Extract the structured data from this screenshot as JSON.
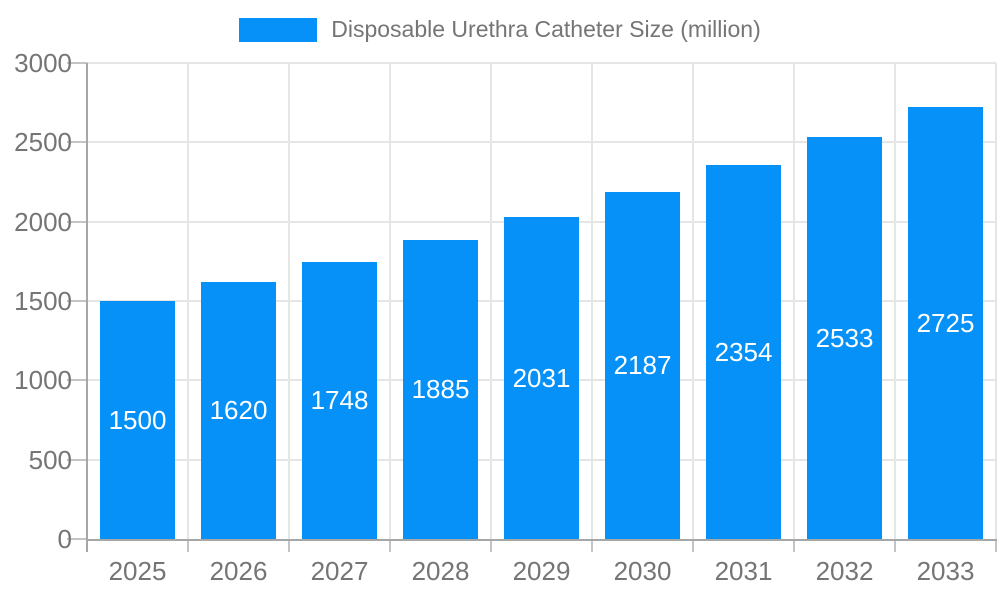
{
  "chart_data": {
    "type": "bar",
    "title": "Disposable Urethra Catheter Size (million)",
    "legend_position": "top",
    "categories": [
      "2025",
      "2026",
      "2027",
      "2028",
      "2029",
      "2030",
      "2031",
      "2032",
      "2033"
    ],
    "values": [
      1500,
      1620,
      1748,
      1885,
      2031,
      2187,
      2354,
      2533,
      2725
    ],
    "bar_value_labels": [
      "1500",
      "1620",
      "1748",
      "1885",
      "2031",
      "2187",
      "2354",
      "2533",
      "2725"
    ],
    "xlabel": "",
    "ylabel": "",
    "ylim": [
      0,
      3000
    ],
    "ytick_step": 500,
    "yticks": [
      0,
      500,
      1000,
      1500,
      2000,
      2500,
      3000
    ],
    "grid": true,
    "colors": {
      "bar": "#0591f8",
      "bar_label": "#ffffff",
      "axis_text": "#757575",
      "legend_text": "#757575",
      "gridline": "#e5e5e5",
      "axis_line": "#a6a6a6",
      "tick": "#c4c4c4"
    }
  }
}
